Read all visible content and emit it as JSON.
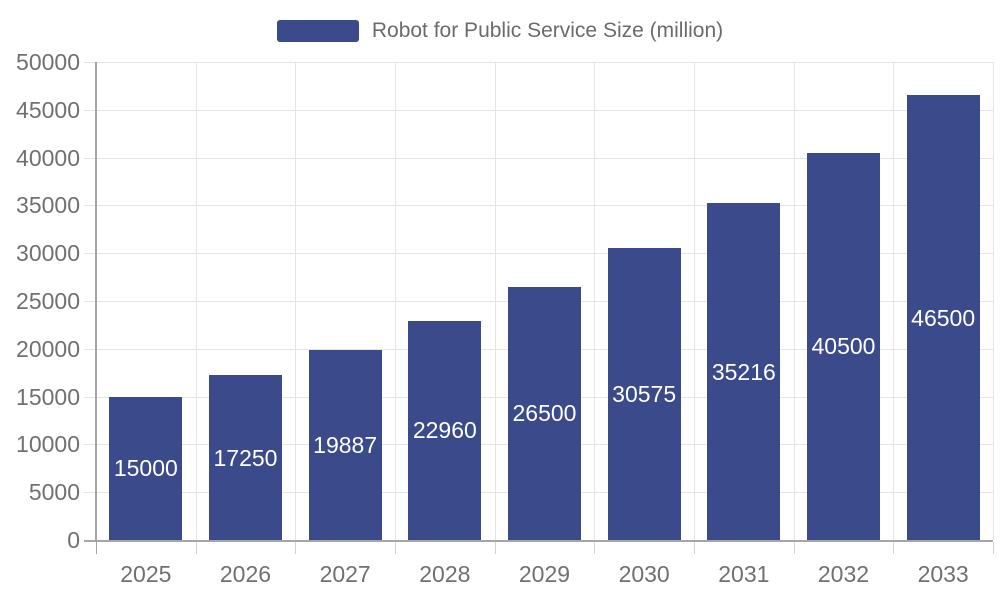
{
  "chart_data": {
    "type": "bar",
    "title": "Robot for Public Service Size (million)",
    "categories": [
      "2025",
      "2026",
      "2027",
      "2028",
      "2029",
      "2030",
      "2031",
      "2032",
      "2033"
    ],
    "series": [
      {
        "name": "Robot for Public Service Size (million)",
        "values": [
          15000,
          17250,
          19887,
          22960,
          26500,
          30575,
          35216,
          40500,
          46500
        ]
      }
    ],
    "data_labels": [
      "15000",
      "17250",
      "19887",
      "22960",
      "26500",
      "30575",
      "35216",
      "40500",
      "46500"
    ],
    "data_labels_visible": true,
    "xlabel": "",
    "ylabel": "",
    "ylim": [
      0,
      50000
    ],
    "yticks": [
      0,
      5000,
      10000,
      15000,
      20000,
      25000,
      30000,
      35000,
      40000,
      45000,
      50000
    ],
    "ytick_labels": [
      "0",
      "5000",
      "10000",
      "15000",
      "20000",
      "25000",
      "30000",
      "35000",
      "40000",
      "45000",
      "50000"
    ],
    "grid": true,
    "legend_position": "top",
    "colors": {
      "bar": "#3A4A8A",
      "data_label": "#FFFFFF",
      "axis_label": "#707070",
      "legend_text": "#6B6B6B",
      "gridline": "#E4E4E4",
      "x_tick": "#D2D2D2",
      "axis_line": "#A6A6A6",
      "background": "#FFFFFF"
    }
  }
}
